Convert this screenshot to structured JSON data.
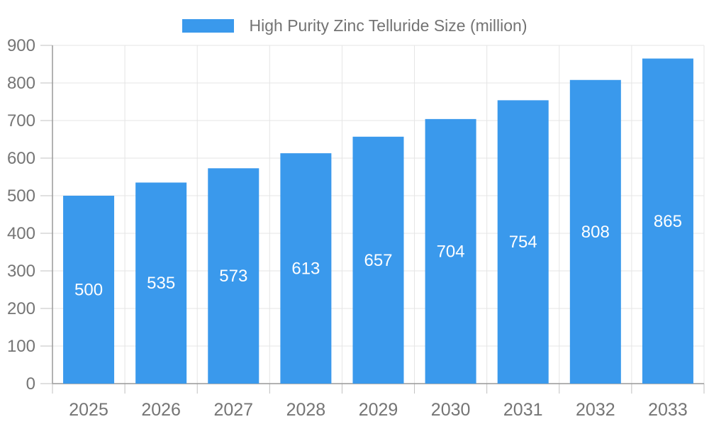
{
  "legend": {
    "label": "High Purity Zinc Telluride Size (million)"
  },
  "colors": {
    "bar": "#3A99EC",
    "grid": "#E5E5E5",
    "axis": "#999999",
    "tick": "#C0C0C0",
    "text": "#757575",
    "bar_label": "#FFFFFF"
  },
  "chart_data": {
    "type": "bar",
    "title": "High Purity Zinc Telluride Size (million)",
    "categories": [
      "2025",
      "2026",
      "2027",
      "2028",
      "2029",
      "2030",
      "2031",
      "2032",
      "2033"
    ],
    "values": [
      500,
      535,
      573,
      613,
      657,
      704,
      754,
      808,
      865
    ],
    "xlabel": "",
    "ylabel": "",
    "ylim": [
      0,
      900
    ],
    "ytick_step": 100,
    "grid": true,
    "legend_position": "top",
    "bar_label_position": "center"
  }
}
